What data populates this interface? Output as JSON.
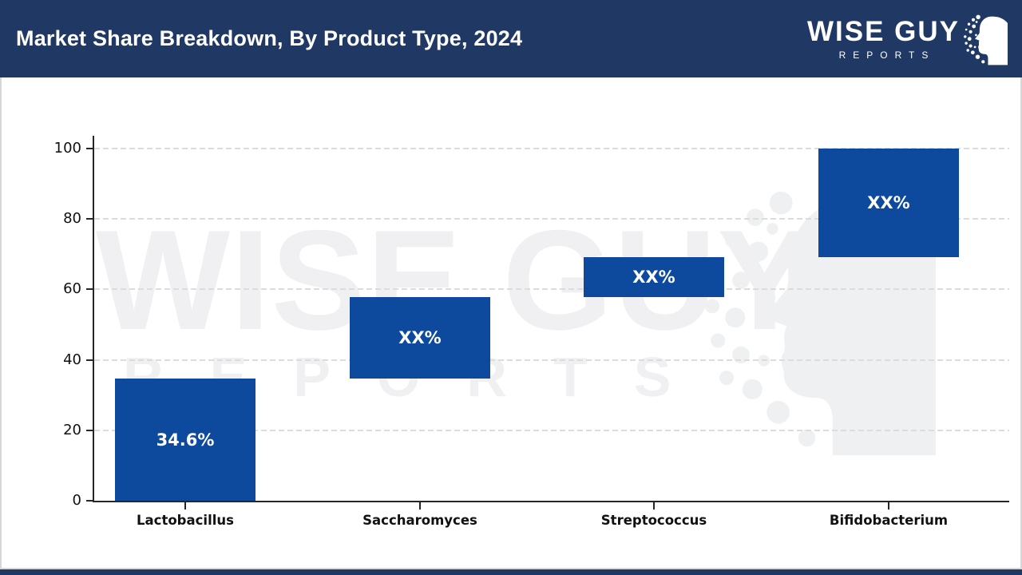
{
  "header": {
    "title": "Market Share Breakdown, By Product Type, 2024",
    "logo": {
      "primary": "WISE GUY",
      "secondary": "REPORTS"
    }
  },
  "watermark": {
    "primary": "WISE GUY",
    "secondary": "REPORTS"
  },
  "chart_data": {
    "type": "bar",
    "subtype": "floating-waterfall",
    "title": "Market Share Breakdown, By Product Type, 2024",
    "categories": [
      "Lactobacillus",
      "Saccharomyces",
      "Streptococcus",
      "Bifidobacterium"
    ],
    "segments": [
      {
        "category": "Lactobacillus",
        "start": 0,
        "end": 34.6,
        "label": "34.6%"
      },
      {
        "category": "Saccharomyces",
        "start": 34.6,
        "end": 57.8,
        "label": "XX%"
      },
      {
        "category": "Streptococcus",
        "start": 57.8,
        "end": 69.2,
        "label": "XX%"
      },
      {
        "category": "Bifidobacterium",
        "start": 69.2,
        "end": 100,
        "label": "XX%"
      }
    ],
    "xlabel": "",
    "ylabel": "",
    "ylim": [
      0,
      100
    ],
    "yticks": [
      0,
      20,
      40,
      60,
      80,
      100
    ],
    "grid": "horizontal-dashed",
    "legend": false,
    "bar_color": "#0d4a9e",
    "value_label_color": "#ffffff"
  },
  "colors": {
    "header_bg": "#203864",
    "footer_bg": "#203864",
    "bar": "#0d4a9e",
    "grid": "#dcdcdc",
    "axis": "#262626",
    "watermark": "#f0f0f2",
    "text": "#111111",
    "title_text": "#ffffff",
    "border": "#d6d6d6"
  }
}
